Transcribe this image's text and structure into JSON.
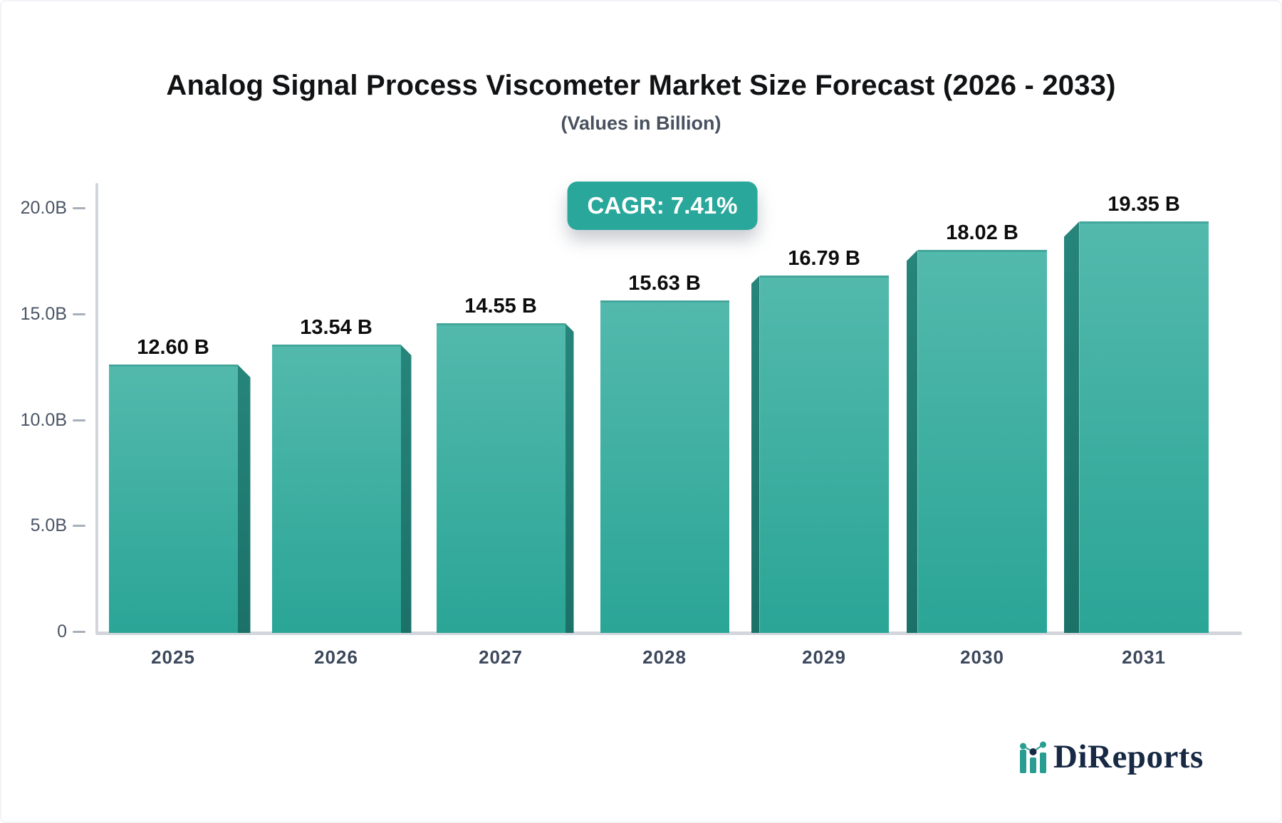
{
  "header": {
    "title": "Analog Signal Process Viscometer Market Size Forecast (2026 - 2033)",
    "subtitle": "(Values in Billion)"
  },
  "badge": {
    "label": "CAGR: 7.41%",
    "background": "#2aa79b",
    "text_color": "#ffffff"
  },
  "chart_data": {
    "type": "bar",
    "title": "Analog Signal Process Viscometer Market Size Forecast (2026 - 2033)",
    "subtitle": "(Values in Billion)",
    "categories": [
      "2025",
      "2026",
      "2027",
      "2028",
      "2029",
      "2030",
      "2031"
    ],
    "values": [
      12.6,
      13.54,
      14.55,
      15.63,
      16.79,
      18.02,
      19.35
    ],
    "value_labels": [
      "12.60 B",
      "13.54 B",
      "14.55 B",
      "15.63 B",
      "16.79 B",
      "18.02 B",
      "19.35 B"
    ],
    "xlabel": "",
    "ylabel": "",
    "ylim": [
      0,
      20
    ],
    "y_ticks": [
      {
        "value": 0,
        "label": "0"
      },
      {
        "value": 5,
        "label": "5.0B"
      },
      {
        "value": 10,
        "label": "10.0B"
      },
      {
        "value": 15,
        "label": "15.0B"
      },
      {
        "value": 20,
        "label": "20.0B"
      }
    ],
    "grid": false,
    "legend": false,
    "annotations": [
      "CAGR: 7.41%"
    ],
    "colors": {
      "bar_top": "#53b9ad",
      "bar_bottom": "#2aa596",
      "bar_side": "#1f7e74",
      "axis": "#d2d6dc",
      "tick_dash": "#a7afb9",
      "tick_label": "#4a5565",
      "year_label": "#3c485c",
      "value_label": "#0d0d0d",
      "badge": "#2aa79b"
    }
  },
  "branding": {
    "logo_text": "DiReports",
    "logo_color": "#172944",
    "logo_accent": "#2a9d92"
  }
}
